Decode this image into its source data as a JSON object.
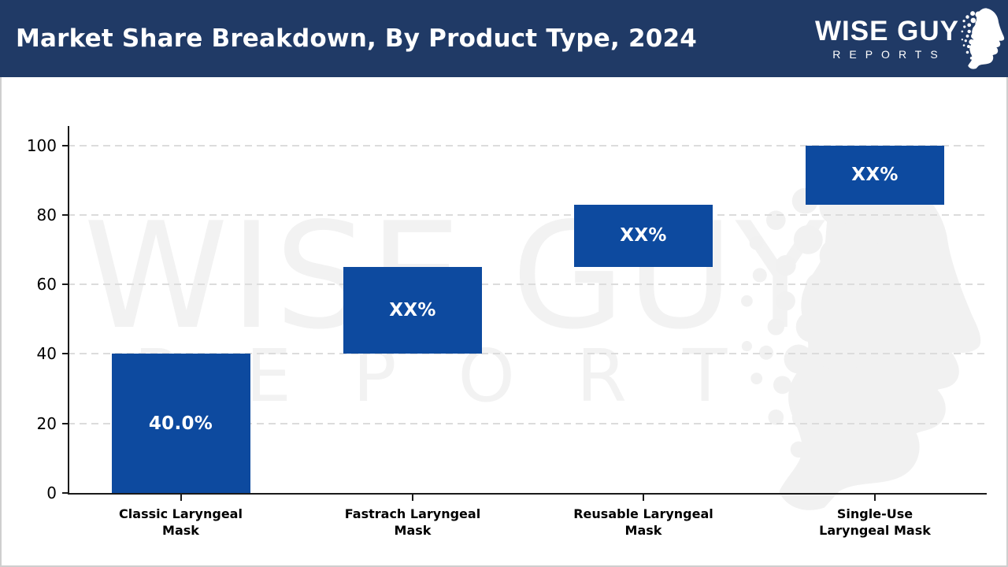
{
  "header": {
    "title": "Market Share Breakdown, By Product Type, 2024",
    "bg_color": "#203a66",
    "logo": {
      "brand_line1": "WISE GUY",
      "brand_line2": "REPORTS"
    }
  },
  "watermark": {
    "line1": "WISE GUY",
    "line2": "REPORTS"
  },
  "chart_data": {
    "type": "bar",
    "subtype": "floating-waterfall",
    "title": "Market Share Breakdown, By Product Type, 2024",
    "categories": [
      "Classic Laryngeal Mask",
      "Fastrach Laryngeal Mask",
      "Reusable Laryngeal Mask",
      "Single-Use Laryngeal Mask"
    ],
    "tick_label_lines": [
      [
        "Classic Laryngeal",
        "Mask"
      ],
      [
        "Fastrach Laryngeal",
        "Mask"
      ],
      [
        "Reusable Laryngeal",
        "Mask"
      ],
      [
        "Single-Use",
        "Laryngeal Mask"
      ]
    ],
    "segments": [
      {
        "category": "Classic Laryngeal Mask",
        "start": 0,
        "end": 40,
        "label": "40.0%"
      },
      {
        "category": "Fastrach Laryngeal Mask",
        "start": 40,
        "end": 65,
        "label": "XX%"
      },
      {
        "category": "Reusable Laryngeal Mask",
        "start": 65,
        "end": 83,
        "label": "XX%"
      },
      {
        "category": "Single-Use Laryngeal Mask",
        "start": 83,
        "end": 100,
        "label": "XX%"
      }
    ],
    "value_labels": [
      "40.0%",
      "XX%",
      "XX%",
      "XX%"
    ],
    "yticks": [
      0,
      20,
      40,
      60,
      80,
      100
    ],
    "ylim": [
      0,
      105
    ],
    "xlabel": "",
    "ylabel": "",
    "grid": "horizontal-dashed",
    "legend": "none",
    "bar_color": "#0d4a9f",
    "label_color": "#ffffff"
  }
}
